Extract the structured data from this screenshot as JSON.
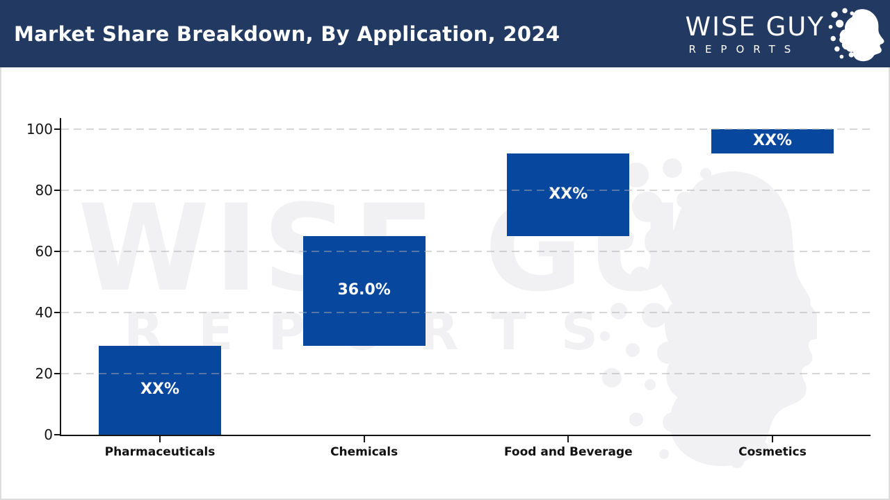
{
  "header": {
    "title": "Market Share Breakdown, By Application, 2024",
    "logo": {
      "line1": "WISE GUY",
      "line2": "REPORTS"
    }
  },
  "watermark": {
    "line1": "WISE GUY",
    "line2": "REPORTS"
  },
  "chart_data": {
    "type": "bar",
    "variant": "waterfall",
    "title": "Market Share Breakdown, By Application, 2024",
    "categories": [
      "Pharmaceuticals",
      "Chemicals",
      "Food and Beverage",
      "Cosmetics"
    ],
    "bars": [
      {
        "category": "Pharmaceuticals",
        "start": 0,
        "end": 29,
        "value": 29,
        "label": "XX%"
      },
      {
        "category": "Chemicals",
        "start": 29,
        "end": 65,
        "value": 36,
        "label": "36.0%"
      },
      {
        "category": "Food and Beverage",
        "start": 65,
        "end": 92,
        "value": 27,
        "label": "XX%"
      },
      {
        "category": "Cosmetics",
        "start": 92,
        "end": 100,
        "value": 8,
        "label": "XX%"
      }
    ],
    "yticks": [
      0,
      20,
      40,
      60,
      80,
      100
    ],
    "ylim": [
      0,
      104
    ],
    "xlabel": "",
    "ylabel": "",
    "grid": "horizontal-dashed",
    "legend": false
  },
  "colors": {
    "header_bg": "#223A61",
    "bar": "#08479E",
    "axis": "#151515",
    "grid": "#c9c9c9",
    "watermark": "#f1f1f3",
    "bar_label": "#ffffff"
  }
}
